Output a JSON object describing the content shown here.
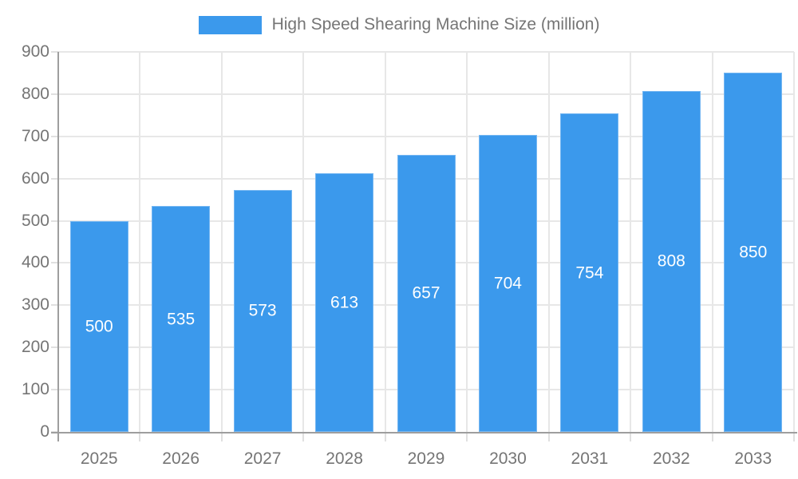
{
  "chart_data": {
    "type": "bar",
    "title": "High Speed Shearing Machine Size (million)",
    "categories": [
      "2025",
      "2026",
      "2027",
      "2028",
      "2029",
      "2030",
      "2031",
      "2032",
      "2033"
    ],
    "values": [
      500,
      535,
      573,
      613,
      657,
      704,
      754,
      808,
      850
    ],
    "xlabel": "",
    "ylabel": "",
    "ylim": [
      0,
      900
    ],
    "yticks": [
      0,
      100,
      200,
      300,
      400,
      500,
      600,
      700,
      800,
      900
    ],
    "grid": true,
    "legend_position": "top-center",
    "colors": {
      "bar": "#3B99EC",
      "bar_value_label": "#FFFFFF",
      "axis_text": "#757575",
      "axis_line": "#9E9E9E",
      "gridline": "#E7E7E7",
      "tick": "#E0E0E0",
      "background": "#FFFFFF"
    }
  }
}
